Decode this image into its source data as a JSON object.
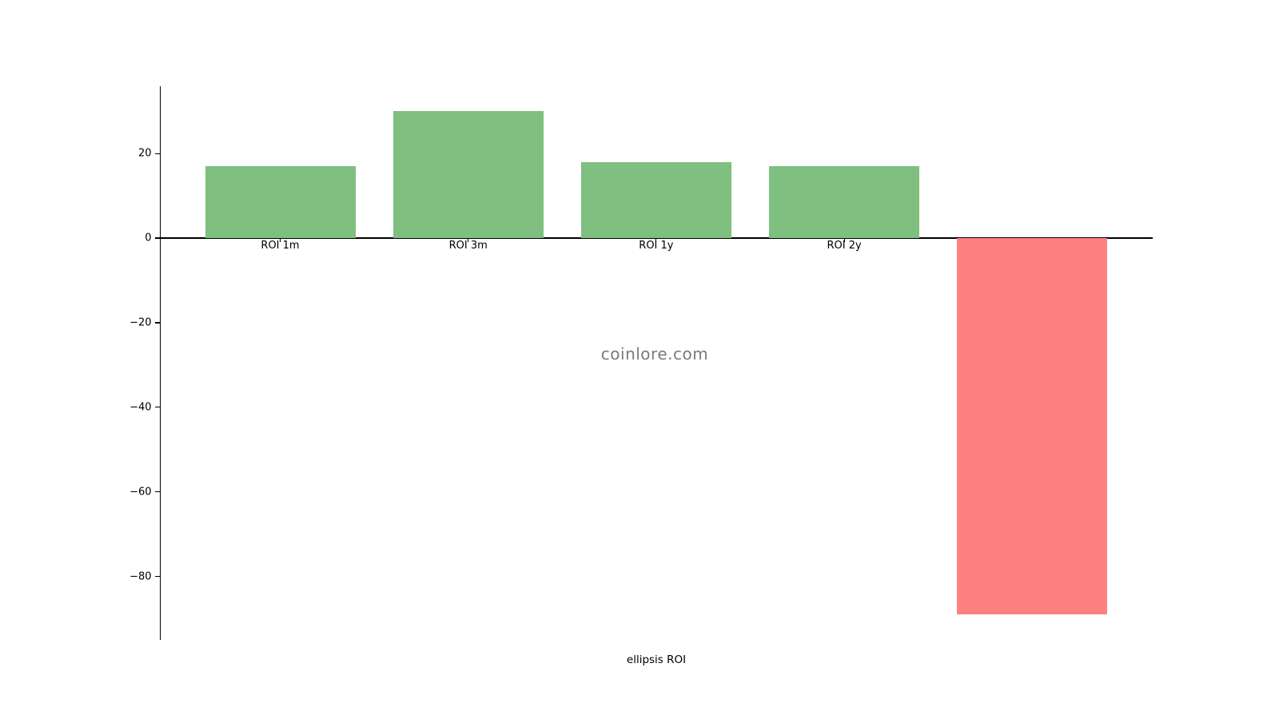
{
  "page": {
    "background": "#ffffff"
  },
  "watermark": {
    "text": "coinlore.com",
    "color": "#7a7a7a"
  },
  "chart_data": {
    "type": "bar",
    "title": "",
    "xlabel": "ellipsis ROI",
    "ylabel": "",
    "categories": [
      "ROI 1m",
      "ROI 3m",
      "ROI 1y",
      "ROI 2y",
      ""
    ],
    "values": [
      17,
      30,
      18,
      17,
      -89
    ],
    "bar_colors": [
      "#7fbf7f",
      "#7fbf7f",
      "#7fbf7f",
      "#7fbf7f",
      "#ff8080"
    ],
    "positive_color": "#7fbf7f",
    "negative_color": "#ff8080",
    "yticks": [
      20,
      0,
      -20,
      -40,
      -60,
      -80
    ],
    "ytick_labels": [
      "20",
      "0",
      "−20",
      "−40",
      "−60",
      "−80"
    ],
    "ylim": [
      -95,
      36
    ],
    "grid": false,
    "legend_position": "none",
    "axis_color": "#000000",
    "tick_label_color": "#000000"
  }
}
